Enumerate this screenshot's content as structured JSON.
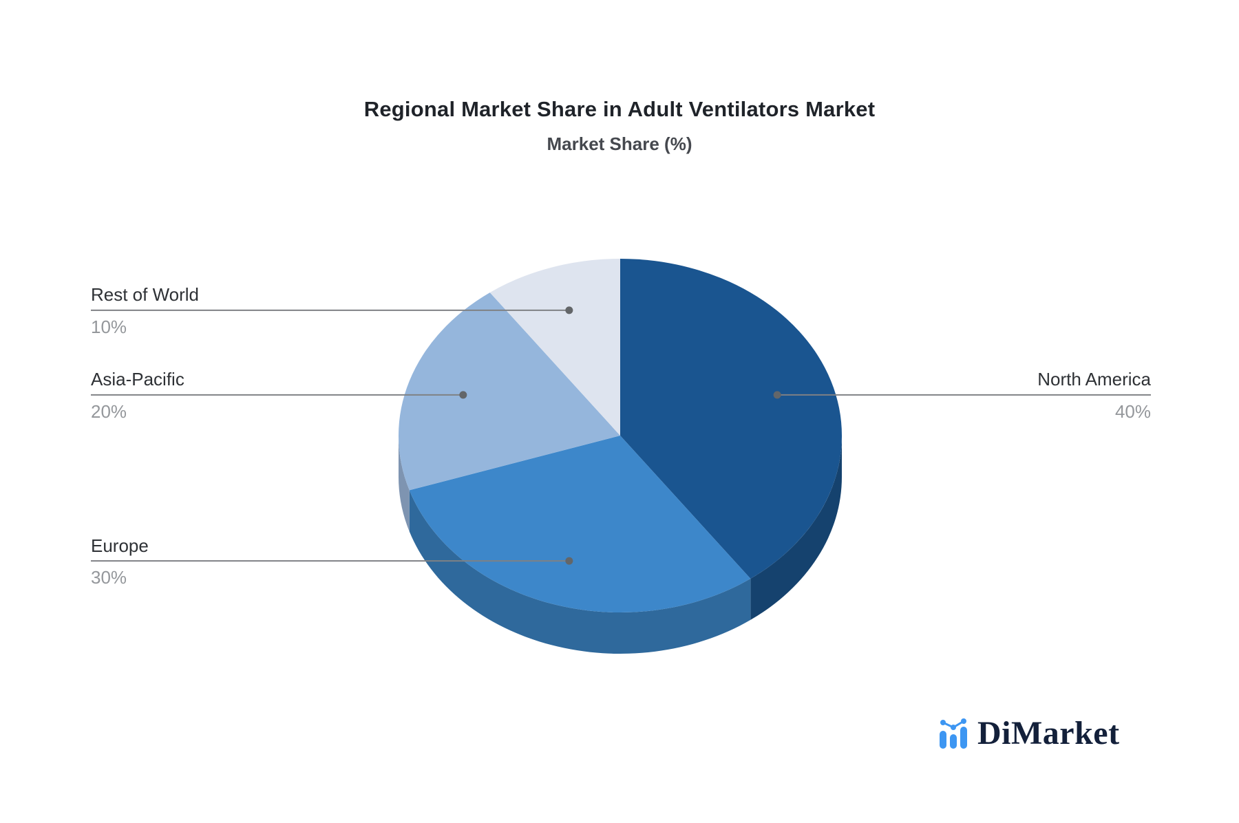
{
  "page": {
    "background": "#ffffff"
  },
  "chart_data": {
    "type": "pie",
    "pie_style": "3d",
    "title": "Regional Market Share in Adult Ventilators Market",
    "subtitle": "Market Share (%)",
    "unit": "%",
    "legend": "none",
    "gridlines": "off",
    "label_layout": "leader-lines with name above line and percent below line",
    "slices": [
      {
        "label": "North America",
        "value": 40,
        "percent_label": "40%",
        "color": "#1a5590",
        "side_color": "#15426e",
        "label_side": "right"
      },
      {
        "label": "Europe",
        "value": 30,
        "percent_label": "30%",
        "color": "#3d87ca",
        "side_color": "#2f699c",
        "label_side": "left"
      },
      {
        "label": "Asia-Pacific",
        "value": 20,
        "percent_label": "20%",
        "color": "#95b6dc",
        "side_color": "#7e94b1",
        "label_side": "left"
      },
      {
        "label": "Rest of World",
        "value": 10,
        "percent_label": "10%",
        "color": "#dee4ef",
        "side_color": null,
        "label_side": "left"
      }
    ],
    "colors": {
      "title_text": "#1f2329",
      "subtitle_text": "#45484e",
      "label_text": "#2e3135",
      "percent_text": "#94979b",
      "leader_line": "#7f8184",
      "leader_dot": "#636669"
    }
  },
  "branding": {
    "logo_text": "DiMarket",
    "logo_icon": "bar-line-chart-icon",
    "logo_text_color": "#13203a",
    "logo_icon_color": "#3d96f2"
  }
}
